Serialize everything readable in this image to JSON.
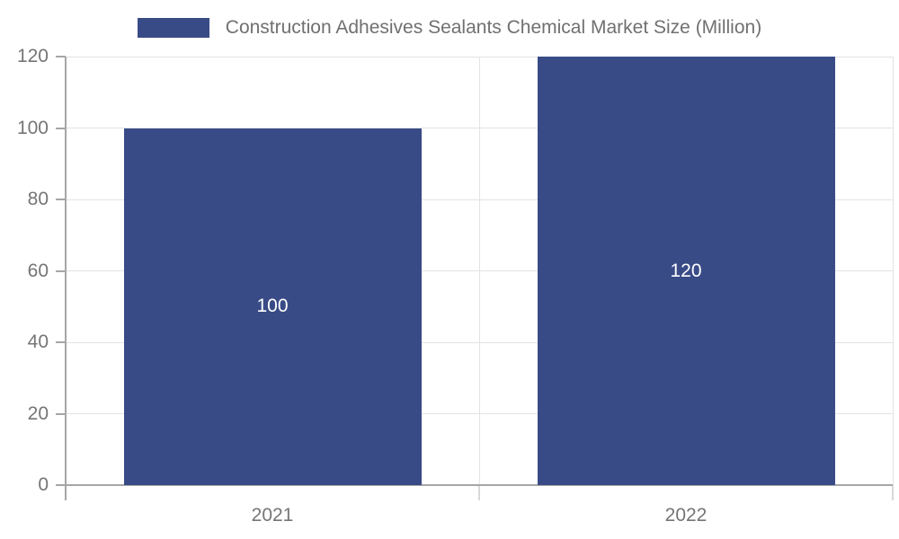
{
  "chart_data": {
    "type": "bar",
    "title": "Construction Adhesives Sealants Chemical Market Size (Million)",
    "legend_entries": [
      "Construction Adhesives Sealants Chemical Market Size (Million)"
    ],
    "legend_position": "top",
    "categories": [
      "2021",
      "2022"
    ],
    "values": [
      100,
      120
    ],
    "value_labels": [
      "100",
      "120"
    ],
    "value_label_position": "inside-center",
    "xlabel": "",
    "ylabel": "",
    "ylim": [
      0,
      120
    ],
    "yticks": [
      0,
      20,
      40,
      60,
      80,
      100,
      120
    ],
    "grid": true,
    "colors": {
      "bar": "#394B86",
      "value_label": "#ffffff",
      "axis_label": "#757575",
      "legend_text": "#707070",
      "grid_line": "#e3e3e3",
      "axis_line": "#a6a6a6",
      "boundary_tick": "#d9d9d9"
    }
  }
}
